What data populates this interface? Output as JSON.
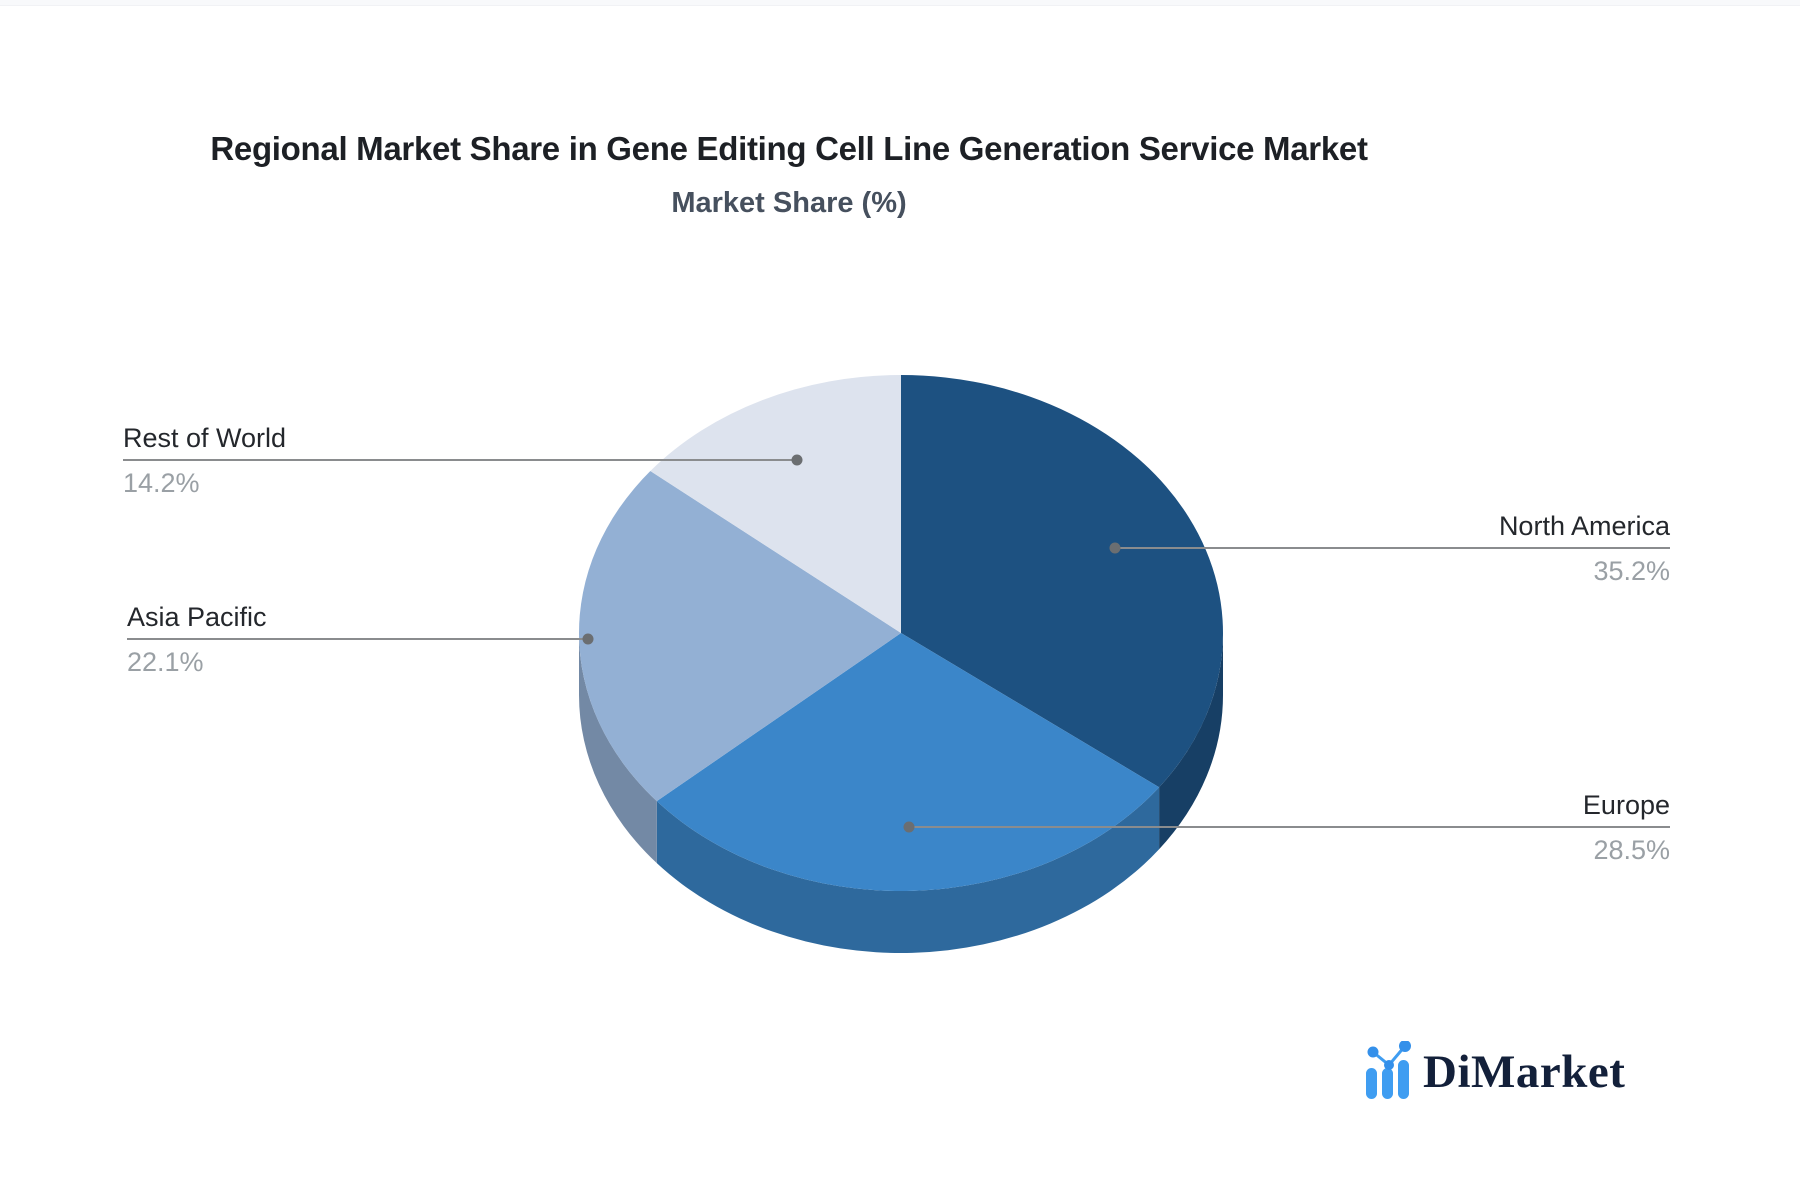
{
  "colors": {
    "title": "#1d2025",
    "subtitle": "#46505e",
    "label_text": "#24272c",
    "value_text": "#9aa0a5",
    "connector": "#8a8c8e",
    "connector_dot": "#6b6e71",
    "logo_text": "#13203a",
    "logo_icon": "#3f9df1",
    "background": "#ffffff"
  },
  "logo": {
    "text": "DiMarket",
    "icon": "bar-chart-trend-icon"
  },
  "chart_data": {
    "type": "pie",
    "style": "3d",
    "title": "Regional Market Share in Gene Editing Cell Line Generation Service Market",
    "subtitle": "Market Share (%)",
    "unit": "%",
    "start_angle_deg": 0,
    "direction": "clockwise",
    "legend": "none",
    "slices": [
      {
        "label": "North America",
        "value": 35.2,
        "value_text": "35.2%",
        "color": "#1d5181",
        "label_side": "right"
      },
      {
        "label": "Europe",
        "value": 28.5,
        "value_text": "28.5%",
        "color": "#3b86c9",
        "label_side": "right"
      },
      {
        "label": "Asia Pacific",
        "value": 22.1,
        "value_text": "22.1%",
        "color": "#93b0d4",
        "label_side": "left"
      },
      {
        "label": "Rest of World",
        "value": 14.2,
        "value_text": "14.2%",
        "color": "#dde3ee",
        "label_side": "left"
      }
    ]
  }
}
